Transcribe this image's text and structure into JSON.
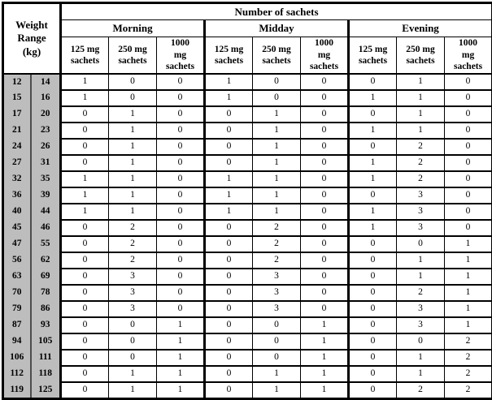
{
  "table": {
    "title": "Number of sachets",
    "weight_header": "Weight\nRange\n(kg)",
    "periods": [
      "Morning",
      "Midday",
      "Evening"
    ],
    "sachet_labels": [
      "125 mg\nsachets",
      "250 mg\nsachets",
      "1000\nmg\nsachets"
    ],
    "colors": {
      "border": "#000000",
      "weight_column_bg": "#bdbdbd",
      "background": "#ffffff"
    },
    "rows": [
      {
        "low": "12",
        "high": "14",
        "values": [
          "1",
          "0",
          "0",
          "1",
          "0",
          "0",
          "0",
          "1",
          "0"
        ]
      },
      {
        "low": "15",
        "high": "16",
        "values": [
          "1",
          "0",
          "0",
          "1",
          "0",
          "0",
          "1",
          "1",
          "0"
        ]
      },
      {
        "low": "17",
        "high": "20",
        "values": [
          "0",
          "1",
          "0",
          "0",
          "1",
          "0",
          "0",
          "1",
          "0"
        ]
      },
      {
        "low": "21",
        "high": "23",
        "values": [
          "0",
          "1",
          "0",
          "0",
          "1",
          "0",
          "1",
          "1",
          "0"
        ]
      },
      {
        "low": "24",
        "high": "26",
        "values": [
          "0",
          "1",
          "0",
          "0",
          "1",
          "0",
          "0",
          "2",
          "0"
        ]
      },
      {
        "low": "27",
        "high": "31",
        "values": [
          "0",
          "1",
          "0",
          "0",
          "1",
          "0",
          "1",
          "2",
          "0"
        ]
      },
      {
        "low": "32",
        "high": "35",
        "values": [
          "1",
          "1",
          "0",
          "1",
          "1",
          "0",
          "1",
          "2",
          "0"
        ]
      },
      {
        "low": "36",
        "high": "39",
        "values": [
          "1",
          "1",
          "0",
          "1",
          "1",
          "0",
          "0",
          "3",
          "0"
        ]
      },
      {
        "low": "40",
        "high": "44",
        "values": [
          "1",
          "1",
          "0",
          "1",
          "1",
          "0",
          "1",
          "3",
          "0"
        ]
      },
      {
        "low": "45",
        "high": "46",
        "values": [
          "0",
          "2",
          "0",
          "0",
          "2",
          "0",
          "1",
          "3",
          "0"
        ]
      },
      {
        "low": "47",
        "high": "55",
        "values": [
          "0",
          "2",
          "0",
          "0",
          "2",
          "0",
          "0",
          "0",
          "1"
        ]
      },
      {
        "low": "56",
        "high": "62",
        "values": [
          "0",
          "2",
          "0",
          "0",
          "2",
          "0",
          "0",
          "1",
          "1"
        ]
      },
      {
        "low": "63",
        "high": "69",
        "values": [
          "0",
          "3",
          "0",
          "0",
          "3",
          "0",
          "0",
          "1",
          "1"
        ]
      },
      {
        "low": "70",
        "high": "78",
        "values": [
          "0",
          "3",
          "0",
          "0",
          "3",
          "0",
          "0",
          "2",
          "1"
        ]
      },
      {
        "low": "79",
        "high": "86",
        "values": [
          "0",
          "3",
          "0",
          "0",
          "3",
          "0",
          "0",
          "3",
          "1"
        ]
      },
      {
        "low": "87",
        "high": "93",
        "values": [
          "0",
          "0",
          "1",
          "0",
          "0",
          "1",
          "0",
          "3",
          "1"
        ]
      },
      {
        "low": "94",
        "high": "105",
        "values": [
          "0",
          "0",
          "1",
          "0",
          "0",
          "1",
          "0",
          "0",
          "2"
        ]
      },
      {
        "low": "106",
        "high": "111",
        "values": [
          "0",
          "0",
          "1",
          "0",
          "0",
          "1",
          "0",
          "1",
          "2"
        ]
      },
      {
        "low": "112",
        "high": "118",
        "values": [
          "0",
          "1",
          "1",
          "0",
          "1",
          "1",
          "0",
          "1",
          "2"
        ]
      },
      {
        "low": "119",
        "high": "125",
        "values": [
          "0",
          "1",
          "1",
          "0",
          "1",
          "1",
          "0",
          "2",
          "2"
        ]
      }
    ]
  }
}
